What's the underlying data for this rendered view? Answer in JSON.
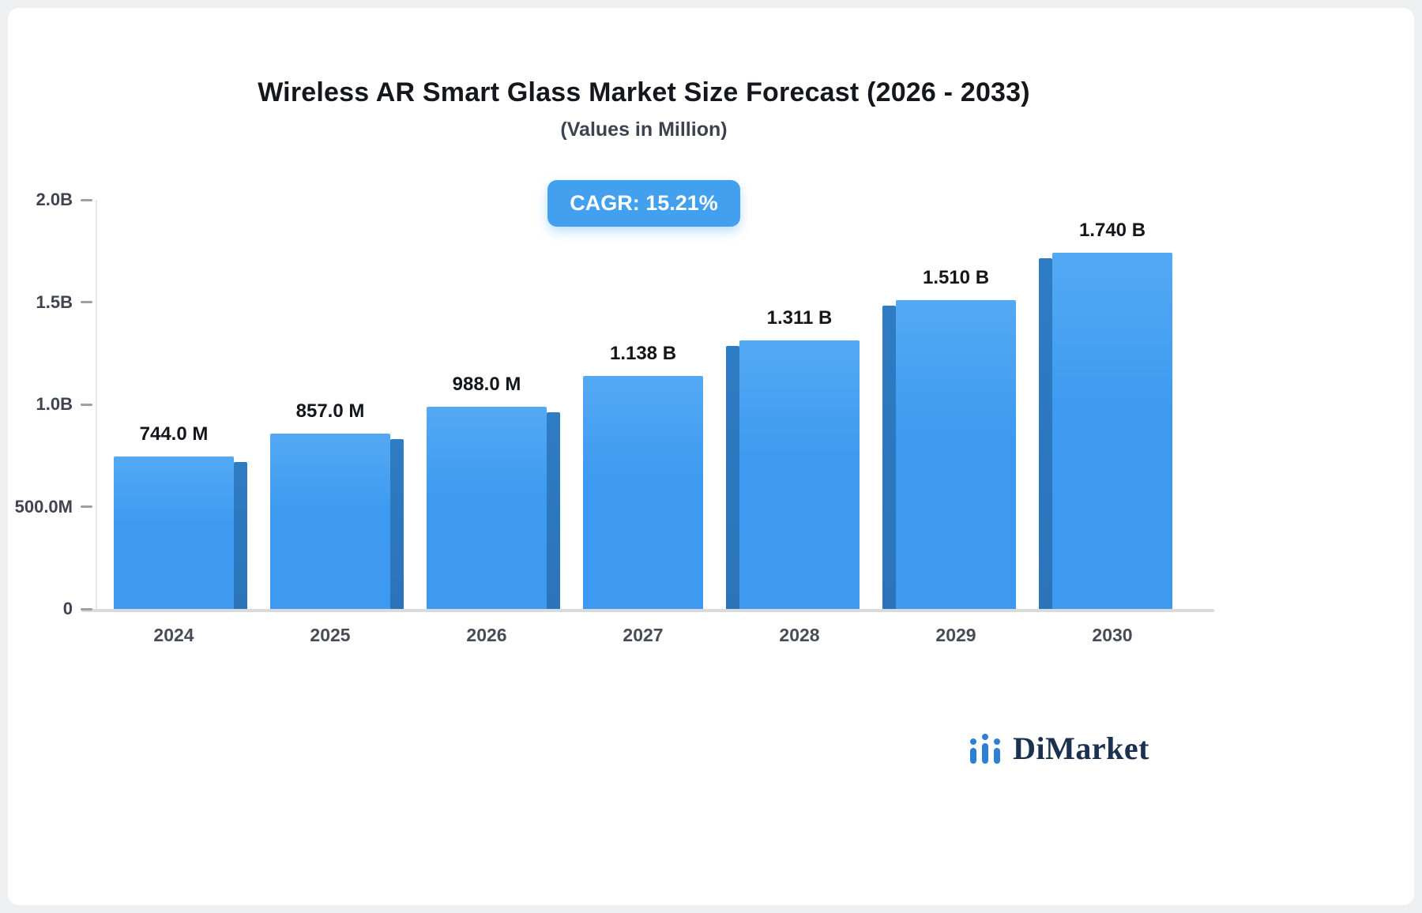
{
  "title": "Wireless AR Smart Glass Market Size Forecast (2026 - 2033)",
  "subtitle": "(Values in Million)",
  "badge": {
    "label": "CAGR: 15.21%"
  },
  "logo": {
    "text": "DiMarket",
    "icon": "bar-chart-logo-icon",
    "color": "#2e7fd6"
  },
  "chart_data": {
    "type": "bar",
    "categories": [
      "2024",
      "2025",
      "2026",
      "2027",
      "2028",
      "2029",
      "2030"
    ],
    "values": [
      744,
      857,
      988,
      1138,
      1311,
      1510,
      1740
    ],
    "value_labels": [
      "744.0 M",
      "857.0 M",
      "988.0 M",
      "1.138 B",
      "1.311 B",
      "1.510 B",
      "1.740 B"
    ],
    "unit": "Million",
    "title": "Wireless AR Smart Glass Market Size Forecast (2026 - 2033)",
    "xlabel": "",
    "ylabel": "",
    "ylim": [
      0,
      2000
    ],
    "yticks": [
      {
        "value": 0,
        "label": "0"
      },
      {
        "value": 500,
        "label": "500.0M"
      },
      {
        "value": 1000,
        "label": "1.0B"
      },
      {
        "value": 1500,
        "label": "1.5B"
      },
      {
        "value": 2000,
        "label": "2.0B"
      }
    ],
    "grid": false,
    "legend": "none",
    "bar_color": "#3d9af0",
    "bar_side_color": "#2b74ba",
    "cagr": "15.21%"
  }
}
